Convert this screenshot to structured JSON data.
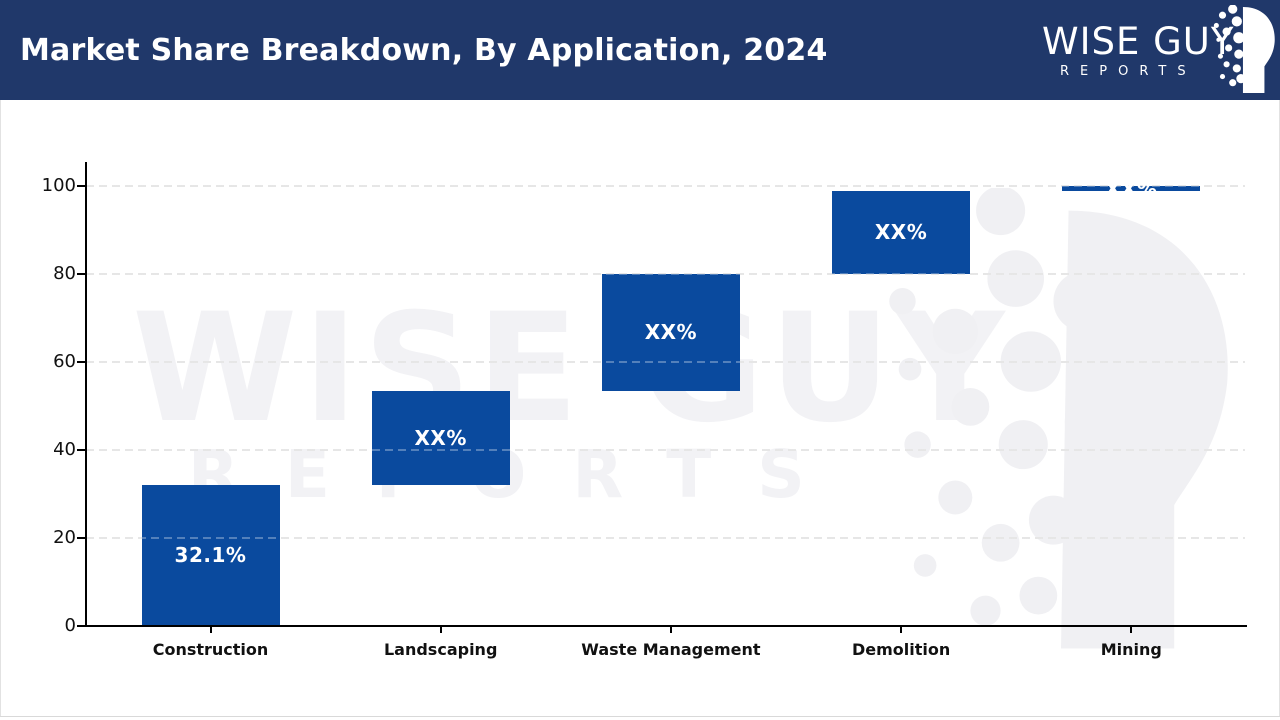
{
  "header": {
    "bg_color": "#20386a",
    "title": "Market Share Breakdown, By Application, 2024",
    "logo": {
      "primary": "WISE GUY",
      "secondary": "REPORTS"
    }
  },
  "watermark": {
    "primary": "WISE GUY",
    "secondary": "REPORTS"
  },
  "chart_data": {
    "type": "bar",
    "subtype": "waterfall",
    "title": "Market Share Breakdown, By Application, 2024",
    "categories": [
      "Construction",
      "Landscaping",
      "Waste Management",
      "Demolition",
      "Mining"
    ],
    "segments": [
      {
        "category": "Construction",
        "start": 0,
        "end": 32.1,
        "label": "32.1%"
      },
      {
        "category": "Landscaping",
        "start": 32.1,
        "end": 53.4,
        "label": "XX%"
      },
      {
        "category": "Waste Management",
        "start": 53.4,
        "end": 80.1,
        "label": "XX%"
      },
      {
        "category": "Demolition",
        "start": 80.1,
        "end": 98.9,
        "label": "XX%"
      },
      {
        "category": "Mining",
        "start": 98.9,
        "end": 100.0,
        "label": "XX%"
      }
    ],
    "ylim": [
      0,
      100
    ],
    "yticks": [
      0,
      20,
      40,
      60,
      80,
      100
    ],
    "xlabel": "",
    "ylabel": "",
    "grid": "horizontal-dashed",
    "gridline_color": "#dcdcdc",
    "bar_color": "#0a4a9e",
    "bar_label_color": "#ffffff",
    "axis_color": "#000000"
  }
}
